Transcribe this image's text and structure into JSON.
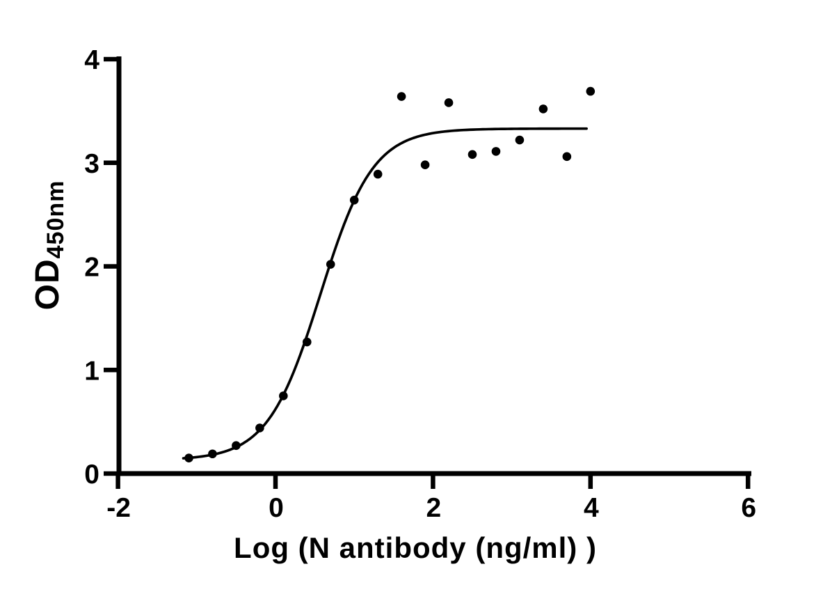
{
  "figure": {
    "background_color": "#ffffff",
    "ink_color": "#000000",
    "title": ""
  },
  "chart_data": {
    "type": "scatter",
    "title": "",
    "xlabel": "Log (N antibody (ng/ml) )",
    "ylabel": "OD",
    "ylabel_subscript": "450nm",
    "xlim": [
      -2,
      6
    ],
    "ylim": [
      0,
      4
    ],
    "x_ticks": [
      -2,
      0,
      2,
      4,
      6
    ],
    "x_tick_labels": [
      "-2",
      "0",
      "2",
      "4",
      "6"
    ],
    "y_ticks": [
      0,
      1,
      2,
      3,
      4
    ],
    "y_tick_labels": [
      "0",
      "1",
      "2",
      "3",
      "4"
    ],
    "grid": false,
    "legend": "none",
    "marker": {
      "shape": "circle",
      "color": "#000000",
      "radius_px": 6.3
    },
    "points": [
      [
        -1.1,
        0.15
      ],
      [
        -0.8,
        0.19
      ],
      [
        -0.5,
        0.27
      ],
      [
        -0.2,
        0.44
      ],
      [
        0.1,
        0.75
      ],
      [
        0.4,
        1.27
      ],
      [
        0.7,
        2.02
      ],
      [
        1.0,
        2.64
      ],
      [
        1.3,
        2.89
      ],
      [
        1.6,
        3.64
      ],
      [
        1.9,
        2.98
      ],
      [
        2.2,
        3.58
      ],
      [
        2.5,
        3.08
      ],
      [
        2.8,
        3.11
      ],
      [
        3.1,
        3.22
      ],
      [
        3.4,
        3.52
      ],
      [
        3.7,
        3.06
      ],
      [
        4.0,
        3.69
      ]
    ],
    "fit_curve": {
      "model": "4PL-sigmoid",
      "bottom": 0.13,
      "top": 3.33,
      "logEC50": 0.57,
      "hill": 1.3,
      "x_start": -1.17,
      "x_end": 3.98,
      "color": "#000000"
    }
  }
}
